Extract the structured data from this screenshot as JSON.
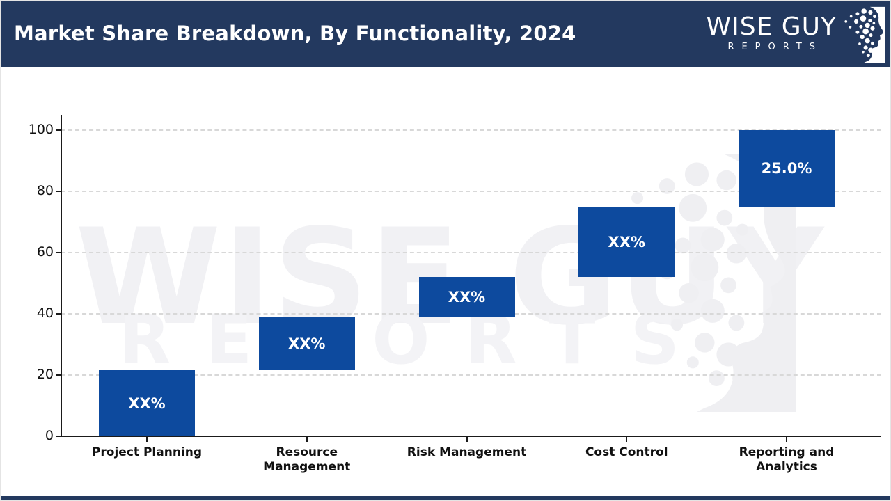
{
  "header": {
    "title": "Market Share Breakdown, By Functionality, 2024",
    "logo": {
      "line1": "WISE GUY",
      "line2": "REPORTS"
    },
    "icons": {
      "brand_head": "dotted-face-profile-icon"
    },
    "bg_color": "#23395f",
    "text_color": "#ffffff"
  },
  "watermark": {
    "line1": "WISE GUY",
    "line2": "REPORTS"
  },
  "chart_data": {
    "type": "bar",
    "subtype": "waterfall",
    "title": "Market Share Breakdown, By Functionality, 2024",
    "categories": [
      "Project Planning",
      "Resource Management",
      "Risk Management",
      "Cost Control",
      "Reporting and Analytics"
    ],
    "category_lines": [
      [
        "Project Planning"
      ],
      [
        "Resource",
        "Management"
      ],
      [
        "Risk Management"
      ],
      [
        "Cost Control"
      ],
      [
        "Reporting and",
        "Analytics"
      ]
    ],
    "series": [
      {
        "name": "Market Share (%)",
        "segment_values": [
          21.5,
          17.5,
          13,
          23,
          25
        ],
        "cumulative_starts": [
          0,
          21.5,
          39,
          52,
          75
        ],
        "cumulative_ends": [
          21.5,
          39,
          52,
          75,
          100
        ]
      }
    ],
    "bar_labels": [
      "XX%",
      "XX%",
      "XX%",
      "XX%",
      "25.0%"
    ],
    "yticks": [
      0,
      20,
      40,
      60,
      80,
      100
    ],
    "ylim": [
      0,
      105
    ],
    "xlabel": "",
    "ylabel": "",
    "grid": "horizontal-dashed",
    "legend": "none",
    "bar_color": "#0d4a9e",
    "bar_label_color": "#ffffff",
    "grid_color": "#d8d8d8",
    "axis_color": "#1a1a1a",
    "tick_label_color": "#111111",
    "watermark_color": "#f1f1f4"
  }
}
